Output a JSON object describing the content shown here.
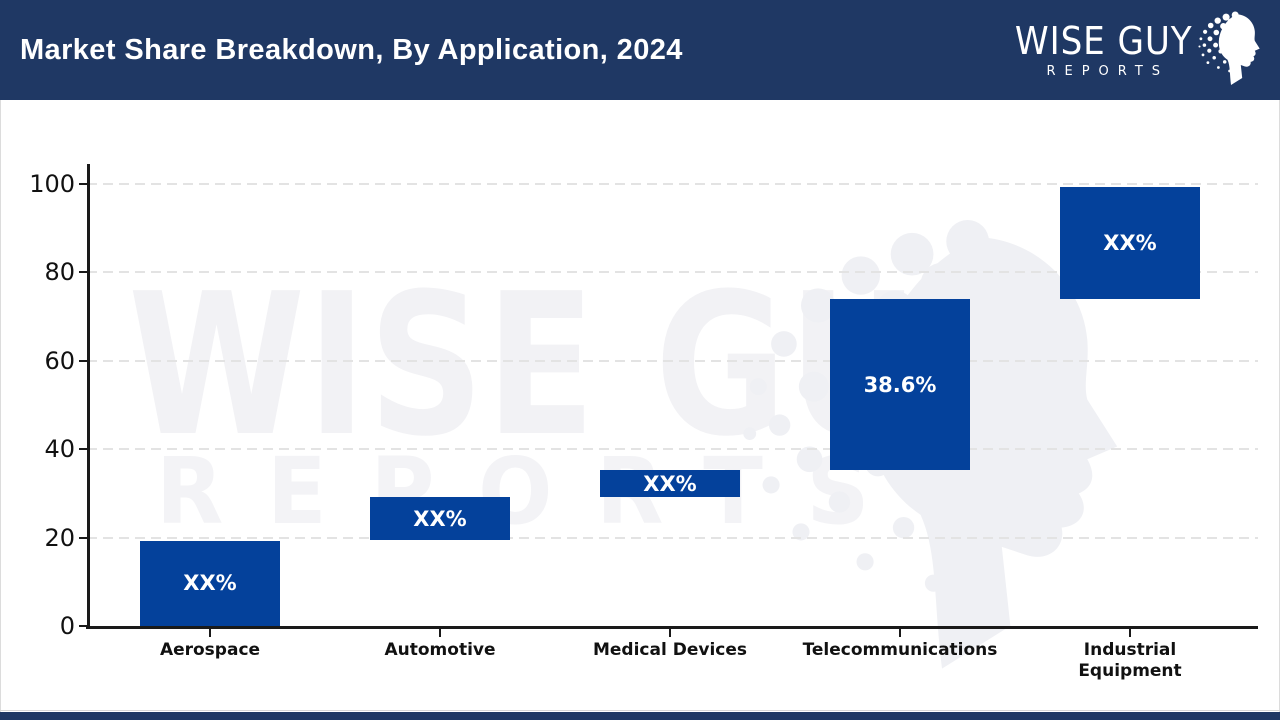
{
  "header": {
    "title": "Market Share Breakdown, By Application, 2024",
    "logo": {
      "line1": "WISE GUY",
      "line2": "REPORTS"
    }
  },
  "watermark": {
    "line1": "WISE GUY",
    "line2": "REPORTS"
  },
  "colors": {
    "header_bg": "#1F3864",
    "footer_bg": "#1F3864",
    "bar": "#04419B",
    "grid": "#E3E3E3",
    "axis": "#1A1A1A",
    "bar_label_text": "#FFFFFF",
    "watermark_text": "#F2F2F5"
  },
  "chart_data": {
    "type": "bar",
    "subtype": "floating-column-waterfall",
    "title": "Market Share Breakdown, By Application, 2024",
    "xlabel": "",
    "ylabel": "",
    "categories": [
      "Aerospace",
      "Automotive",
      "Medical Devices",
      "Telecommunications",
      "Industrial Equipment"
    ],
    "tick_label_lines": [
      [
        "Aerospace"
      ],
      [
        "Automotive"
      ],
      [
        "Medical Devices"
      ],
      [
        "Telecommunications"
      ],
      [
        "Industrial",
        "Equipment"
      ]
    ],
    "bars": [
      {
        "category": "Aerospace",
        "start": 0,
        "end": 19.3,
        "label": "XX%"
      },
      {
        "category": "Automotive",
        "start": 19.5,
        "end": 29.1,
        "label": "XX%"
      },
      {
        "category": "Medical Devices",
        "start": 29.2,
        "end": 35.2,
        "label": "XX%"
      },
      {
        "category": "Telecommunications",
        "start": 35.3,
        "end": 73.9,
        "label": "38.6%"
      },
      {
        "category": "Industrial Equipment",
        "start": 73.9,
        "end": 99.3,
        "label": "XX%"
      }
    ],
    "yticks": [
      0,
      20,
      40,
      60,
      80,
      100
    ],
    "ylim": [
      0,
      105
    ],
    "grid": "horizontal-dashed",
    "legend_position": "none"
  }
}
